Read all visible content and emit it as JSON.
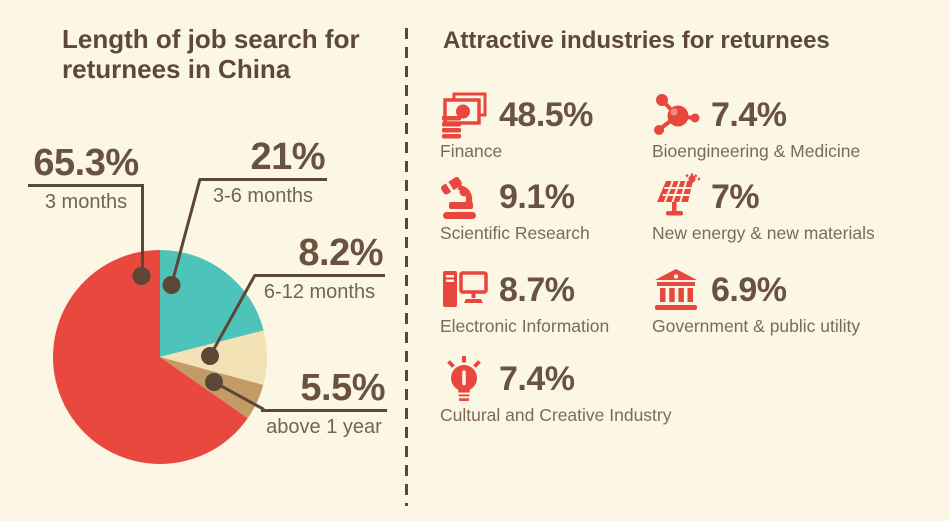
{
  "left_panel": {
    "title_line1": "Length of job search for",
    "title_line2": "returnees in China",
    "callouts": [
      {
        "value": "65.3%",
        "label": "3 months"
      },
      {
        "value": "21%",
        "label": "3-6 months"
      },
      {
        "value": "8.2%",
        "label": "6-12 months"
      },
      {
        "value": "5.5%",
        "label": "above 1 year"
      }
    ]
  },
  "right_panel": {
    "title": "Attractive industries for returnees",
    "items": [
      {
        "icon": "money-icon",
        "value": "48.5%",
        "label": "Finance"
      },
      {
        "icon": "molecule-icon",
        "value": "7.4%",
        "label": "Bioengineering & Medicine"
      },
      {
        "icon": "microscope-icon",
        "value": "9.1%",
        "label": "Scientific Research"
      },
      {
        "icon": "solar-panel-icon",
        "value": "7%",
        "label": "New energy & new materials"
      },
      {
        "icon": "computer-icon",
        "value": "8.7%",
        "label": "Electronic Information"
      },
      {
        "icon": "bank-icon",
        "value": "6.9%",
        "label": "Government & public utility"
      },
      {
        "icon": "lightbulb-icon",
        "value": "7.4%",
        "label": "Cultural and Creative Industry"
      }
    ]
  },
  "chart_data": [
    {
      "type": "pie",
      "title": "Length of job search for returnees in China",
      "categories": [
        "3 months",
        "3-6 months",
        "6-12 months",
        "above 1 year"
      ],
      "values": [
        65.3,
        21,
        8.2,
        5.5
      ],
      "unit": "%",
      "colors": [
        "#e8483e",
        "#4ec3b9",
        "#f3e2b6",
        "#c59b65"
      ],
      "draw_order_clockwise_from_top": [
        1,
        2,
        3,
        0
      ],
      "legend_position": "callouts"
    },
    {
      "type": "table",
      "title": "Attractive industries for returnees",
      "categories": [
        "Finance",
        "Bioengineering & Medicine",
        "Scientific Research",
        "New energy & new materials",
        "Electronic Information",
        "Government & public utility",
        "Cultural and Creative Industry"
      ],
      "values": [
        48.5,
        7.4,
        9.1,
        7,
        8.7,
        6.9,
        7.4
      ],
      "unit": "%"
    }
  ],
  "colors": {
    "background": "#fbf7e4",
    "title_brown": "#5d4936",
    "number_brown": "#6a5240",
    "label_brown": "#7d6a55",
    "line_brown": "#5c4737",
    "icon_red": "#e8473d",
    "pie_red": "#e8483e",
    "pie_teal": "#4ec3b9",
    "pie_cream": "#f3e2b6",
    "pie_tan": "#c59b65"
  }
}
